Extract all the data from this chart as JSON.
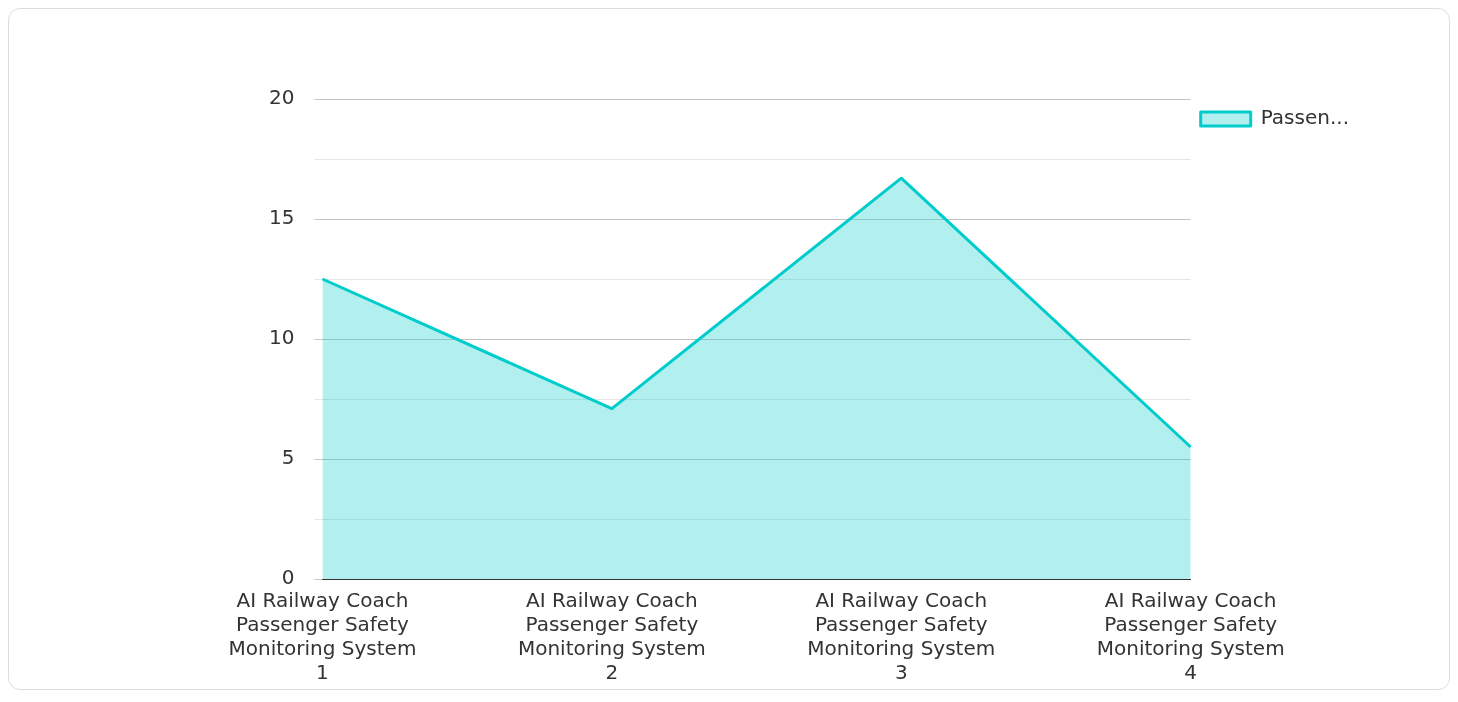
{
  "chart_data": {
    "type": "area",
    "categories": [
      "AI Railway Coach Passenger Safety Monitoring System 1",
      "AI Railway Coach Passenger Safety Monitoring System 2",
      "AI Railway Coach Passenger Safety Monitoring System 3",
      "AI Railway Coach Passenger Safety Monitoring System 4"
    ],
    "series": [
      {
        "name": "Passen...",
        "color": "#00cccc",
        "values": [
          12.5,
          7.1,
          16.7,
          5.5
        ]
      }
    ],
    "ylim": [
      0,
      20
    ],
    "yticks": [
      0,
      {
        "value": 2.5,
        "label": null
      },
      5,
      {
        "value": 7.5,
        "label": null
      },
      10,
      {
        "value": 12.5,
        "label": null
      },
      15,
      {
        "value": 17.5,
        "label": null
      },
      20
    ],
    "grid": "y",
    "legend": "top right"
  }
}
